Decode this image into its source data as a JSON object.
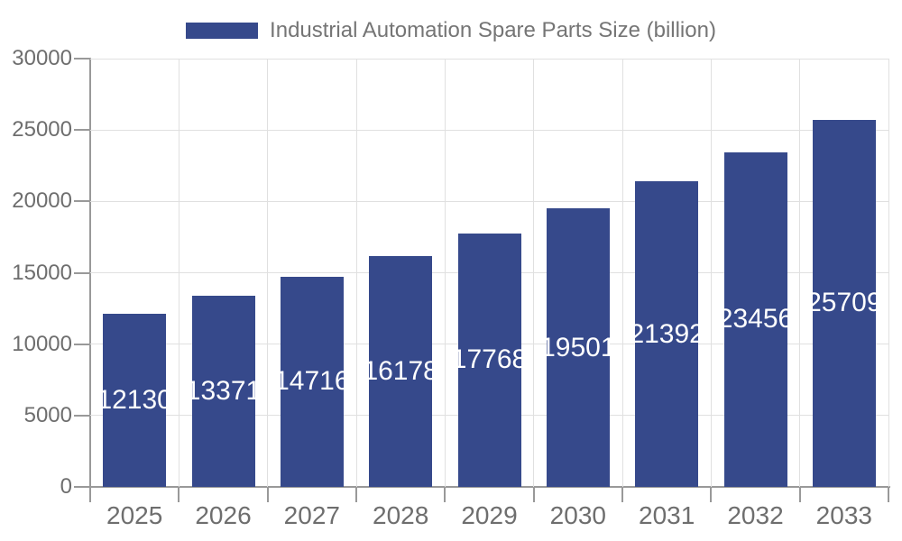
{
  "legend": {
    "label": "Industrial Automation Spare Parts Size (billion)"
  },
  "chart_data": {
    "type": "bar",
    "title": "Industrial Automation Spare Parts Size (billion)",
    "categories": [
      "2025",
      "2026",
      "2027",
      "2028",
      "2029",
      "2030",
      "2031",
      "2032",
      "2033"
    ],
    "values": [
      12130,
      13371,
      14716,
      16178,
      17768,
      19501,
      21392,
      23456,
      25709
    ],
    "xlabel": "",
    "ylabel": "",
    "ylim": [
      0,
      30000
    ],
    "yticks": [
      0,
      5000,
      10000,
      15000,
      20000,
      25000,
      30000
    ],
    "grid": true,
    "legend_position": "top",
    "value_labels_inside_bars": true,
    "colors": {
      "bar": "#36498b",
      "bar_label": "#ffffff",
      "axis_label": "#6e6e6e",
      "legend_text": "#757575",
      "gridline": "#e0e0e0",
      "axis_line": "#999999"
    }
  }
}
